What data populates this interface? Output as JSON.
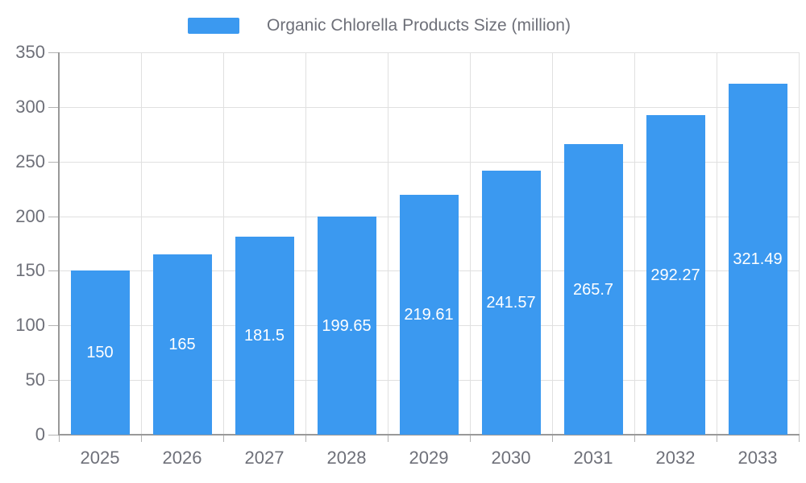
{
  "legend": {
    "label": "Organic Chlorella Products Size (million)"
  },
  "colors": {
    "bar": "#3B99F0",
    "axis_line": "#999999",
    "tick_mark": "#B3B3B3",
    "grid_line": "#E0E0E0",
    "axis_label": "#6E7079",
    "legend_text": "#6E7079",
    "value_label": "#FFFFFF",
    "background": "#FFFFFF"
  },
  "chart_data": {
    "type": "bar",
    "title": "Organic Chlorella Products Size (million)",
    "series_name": "Organic Chlorella Products Size (million)",
    "categories": [
      "2025",
      "2026",
      "2027",
      "2028",
      "2029",
      "2030",
      "2031",
      "2032",
      "2033"
    ],
    "values": [
      150,
      165,
      181.5,
      199.65,
      219.61,
      241.57,
      265.7,
      292.27,
      321.49
    ],
    "value_labels": [
      "150",
      "165",
      "181.5",
      "199.65",
      "219.61",
      "241.57",
      "265.7",
      "292.27",
      "321.49"
    ],
    "xlabel": "",
    "ylabel": "",
    "ylim": [
      0,
      350
    ],
    "yticks": [
      0,
      50,
      100,
      150,
      200,
      250,
      300,
      350
    ],
    "grid": true,
    "legend_position": "top",
    "value_label_position": "inside-center"
  }
}
